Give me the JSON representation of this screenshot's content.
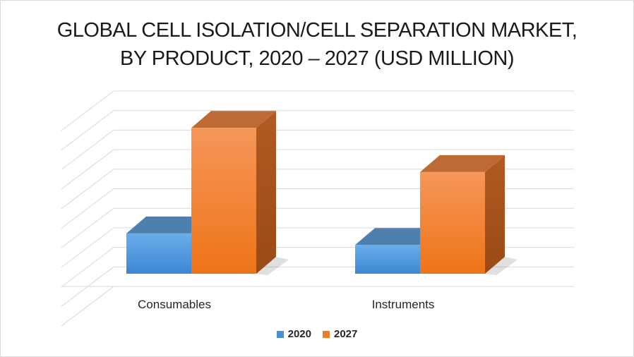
{
  "chart_data": {
    "type": "bar",
    "title_lines": [
      "GLOBAL CELL ISOLATION/CELL SEPARATION MARKET,",
      "BY PRODUCT, 2020 – 2027 (USD MILLION)"
    ],
    "categories": [
      "Consumables",
      "Instruments"
    ],
    "series": [
      {
        "name": "2020",
        "values": [
          2.1,
          1.5
        ],
        "color": "#4a8fd6"
      },
      {
        "name": "2027",
        "values": [
          7.6,
          5.3
        ],
        "color": "#f07d26"
      }
    ],
    "ylim": [
      0,
      9.5
    ],
    "grid": true,
    "three_d": true,
    "legend_position": "bottom"
  }
}
